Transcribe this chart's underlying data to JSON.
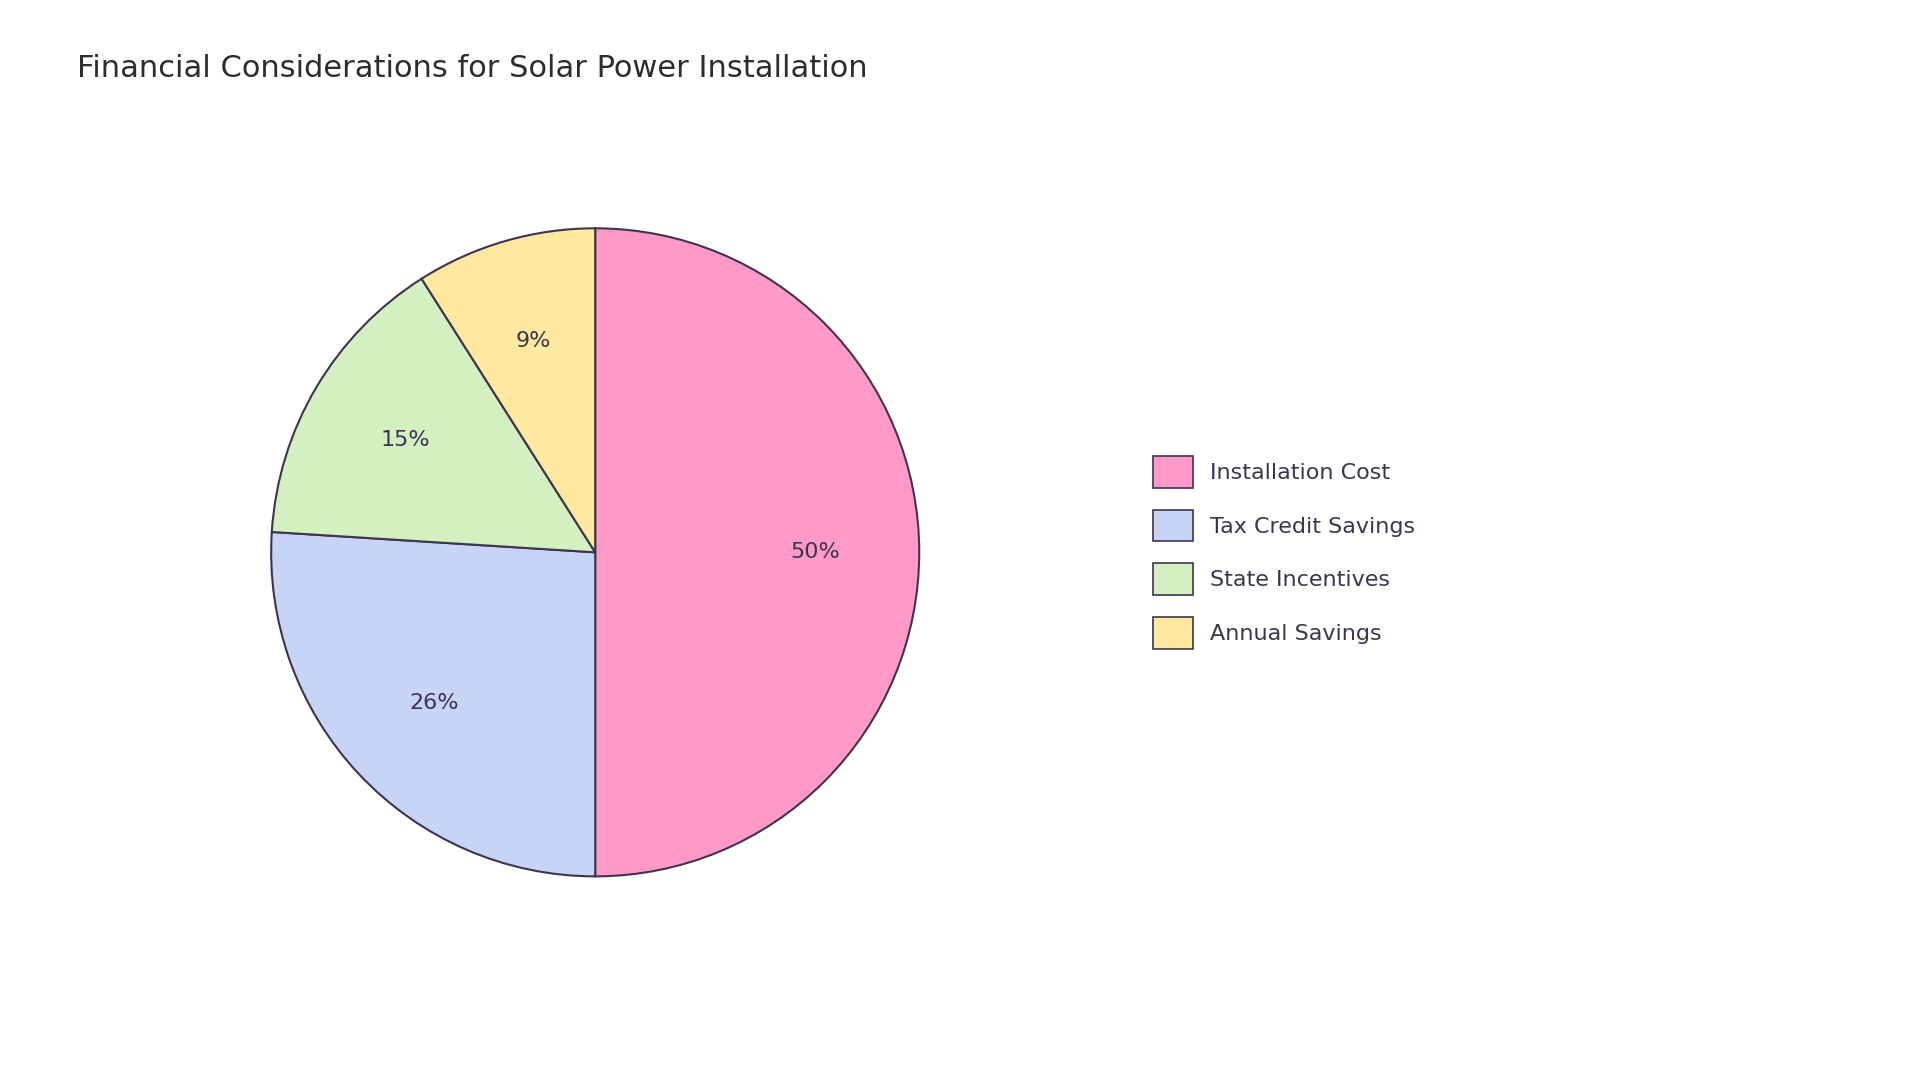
{
  "title": "Financial Considerations for Solar Power Installation",
  "title_fontsize": 22,
  "title_color": "#2d2d2d",
  "labels": [
    "Installation Cost",
    "Tax Credit Savings",
    "State Incentives",
    "Annual Savings"
  ],
  "values": [
    50,
    26,
    15,
    9
  ],
  "colors": [
    "#ff99c8",
    "#c8d4f5",
    "#d4f0c0",
    "#ffe8a0"
  ],
  "edge_color": "#3d3550",
  "edge_width": 1.5,
  "pct_fontsize": 16,
  "pct_color": "#3d3550",
  "legend_fontsize": 16,
  "startangle": 90,
  "background_color": "#ffffff"
}
